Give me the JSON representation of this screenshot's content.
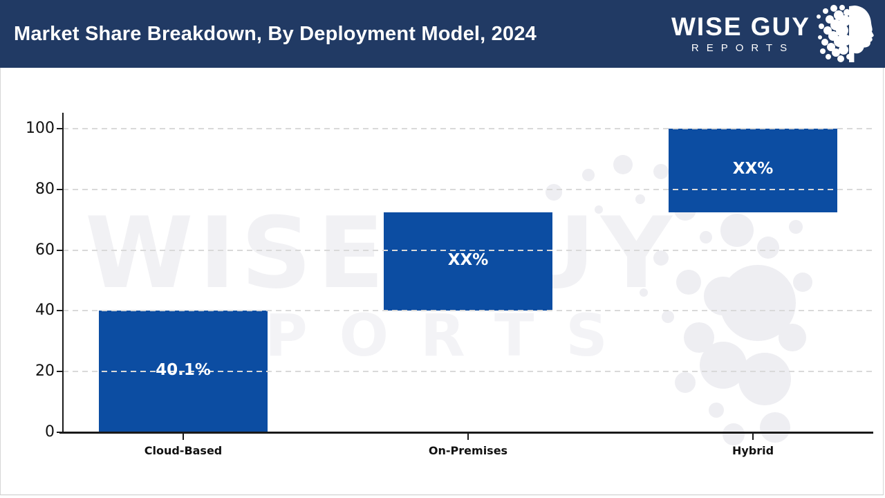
{
  "header": {
    "title": "Market Share Breakdown, By Deployment Model, 2024",
    "logo": {
      "brand_top": "WISE GUY",
      "brand_bottom": "REPORTS"
    }
  },
  "watermark": {
    "line1": "WISE GUY",
    "line2": "REPORTS"
  },
  "colors": {
    "header_bg": "#213A64",
    "bar": "#0C4DA2",
    "grid": "#d9d9d9",
    "axis": "#1a1a1a",
    "watermark": "#f1f1f4"
  },
  "chart_data": {
    "type": "bar",
    "subtype": "stepped-waterfall",
    "title": "Market Share Breakdown, By Deployment Model, 2024",
    "categories": [
      "Cloud-Based",
      "On-Premises",
      "Hybrid"
    ],
    "segments": [
      {
        "category": "Cloud-Based",
        "start": 0,
        "end": 40.1,
        "label": "40.1%"
      },
      {
        "category": "On-Premises",
        "start": 40.1,
        "end": 72.5,
        "label": "XX%"
      },
      {
        "category": "Hybrid",
        "start": 72.5,
        "end": 100,
        "label": "XX%"
      }
    ],
    "values_shown": [
      "40.1%",
      "XX%",
      "XX%"
    ],
    "ylim": [
      0,
      105
    ],
    "yticks": [
      0,
      20,
      40,
      60,
      80,
      100
    ],
    "bar_color": "#0C4DA2",
    "grid": "horizontal-dashed",
    "legend_position": "none"
  }
}
